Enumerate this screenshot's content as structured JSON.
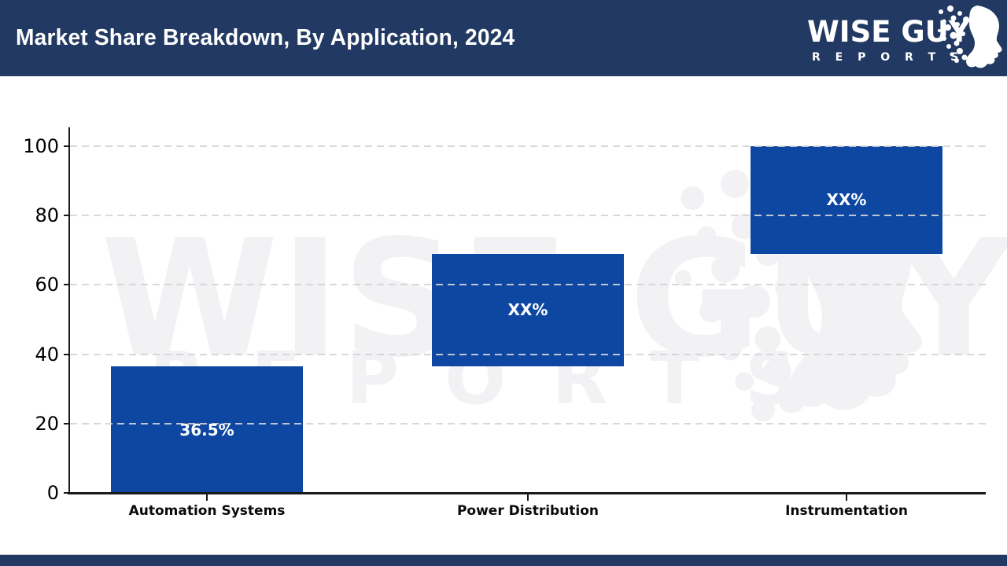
{
  "header": {
    "title": "Market Share Breakdown, By Application, 2024",
    "logo": {
      "name": "WISE GUY",
      "subname": "R E P O R T S"
    }
  },
  "watermark": {
    "line1": "WISE GUY",
    "line2": "REPORTS"
  },
  "chart_data": {
    "type": "bar",
    "subtype": "waterfall-breakdown",
    "title": "Market Share Breakdown, By Application, 2024",
    "categories": [
      "Automation Systems",
      "Power Distribution",
      "Instrumentation"
    ],
    "bars": [
      {
        "category": "Automation Systems",
        "start": 0,
        "end": 36.5,
        "label": "36.5%"
      },
      {
        "category": "Power Distribution",
        "start": 36.5,
        "end": 69,
        "label": "XX%"
      },
      {
        "category": "Instrumentation",
        "start": 69,
        "end": 100,
        "label": "XX%"
      }
    ],
    "yticks": [
      0,
      20,
      40,
      60,
      80,
      100
    ],
    "ylim": [
      0,
      100
    ],
    "xlabel": "",
    "ylabel": "",
    "grid": "dashed-horizontal",
    "legend": "none",
    "bar_color": "#0d47a1",
    "bar_label_color": "#ffffff",
    "axis_color": "#1a1a1a",
    "gridline_color": "#d9d9d9"
  },
  "colors": {
    "header_bg": "#223a63",
    "footer_bg": "#223a63",
    "watermark": "#f2f2f4",
    "logo_text": "#ffffff"
  }
}
